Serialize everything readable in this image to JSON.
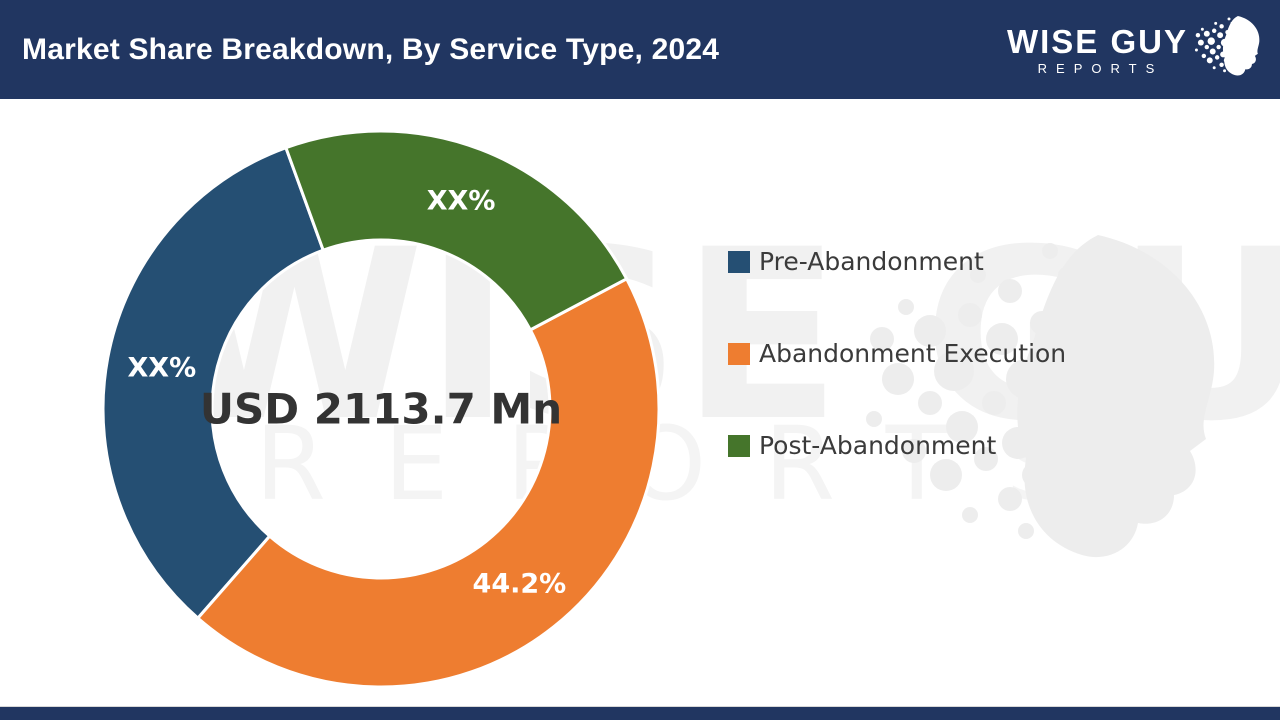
{
  "header": {
    "title": "Market Share Breakdown, By Service Type, 2024",
    "logo": {
      "line1": "WISE GUY",
      "line2": "REPORTS"
    },
    "background_color": "#213661"
  },
  "watermark": {
    "line1": "WISE GUY",
    "line2": "REPORTS"
  },
  "chart_data": {
    "type": "pie",
    "subtype": "donut",
    "title": "Market Share Breakdown, By Service Type, 2024",
    "center_label": "USD 2113.7 Mn",
    "start_angle_deg": 110,
    "direction": "counterclockwise",
    "legend_position": "right",
    "segments": [
      {
        "name": "Pre-Abandonment",
        "value_pct": 33.0,
        "label": "XX%",
        "color": "#254F73"
      },
      {
        "name": "Abandonment Execution",
        "value_pct": 44.2,
        "label": "44.2%",
        "color": "#EE7D30"
      },
      {
        "name": "Post-Abandonment",
        "value_pct": 22.8,
        "label": "XX%",
        "color": "#45752B"
      }
    ]
  },
  "footer": {
    "background_color": "#213661"
  }
}
